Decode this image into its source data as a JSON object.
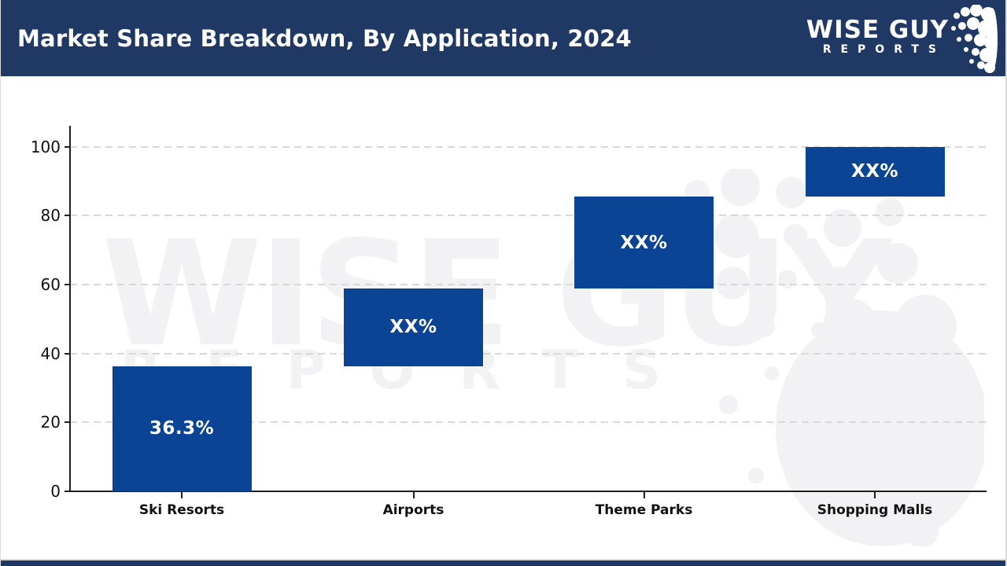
{
  "header": {
    "title": "Market Share Breakdown, By Application, 2024",
    "logo": {
      "line1": "WISE GUY",
      "line2": "REPORTS"
    },
    "bg_color": "#1f3864"
  },
  "watermark": {
    "line1": "WISE GUY",
    "line2": "REPORTS"
  },
  "chart_data": {
    "type": "bar",
    "subtype": "floating-waterfall",
    "title": "Market Share Breakdown, By Application, 2024",
    "categories": [
      "Ski Resorts",
      "Airports",
      "Theme Parks",
      "Shopping Malls"
    ],
    "series": [
      {
        "name": "Market Share (%)",
        "segments": [
          {
            "category": "Ski Resorts",
            "start": 0,
            "end": 36.3,
            "label": "36.3%"
          },
          {
            "category": "Airports",
            "start": 36.3,
            "end": 58.9,
            "label": "XX%"
          },
          {
            "category": "Theme Parks",
            "start": 58.9,
            "end": 85.5,
            "label": "XX%"
          },
          {
            "category": "Shopping Malls",
            "start": 85.5,
            "end": 100,
            "label": "XX%"
          }
        ]
      }
    ],
    "xlabel": "",
    "ylabel": "",
    "ylim": [
      0,
      100
    ],
    "yticks": [
      0,
      20,
      40,
      60,
      80,
      100
    ],
    "grid": "horizontal-dashed",
    "legend": "none",
    "bar_color": "#0b4495",
    "bar_label_color": "#ffffff",
    "axis_color": "#1f1f1f"
  }
}
